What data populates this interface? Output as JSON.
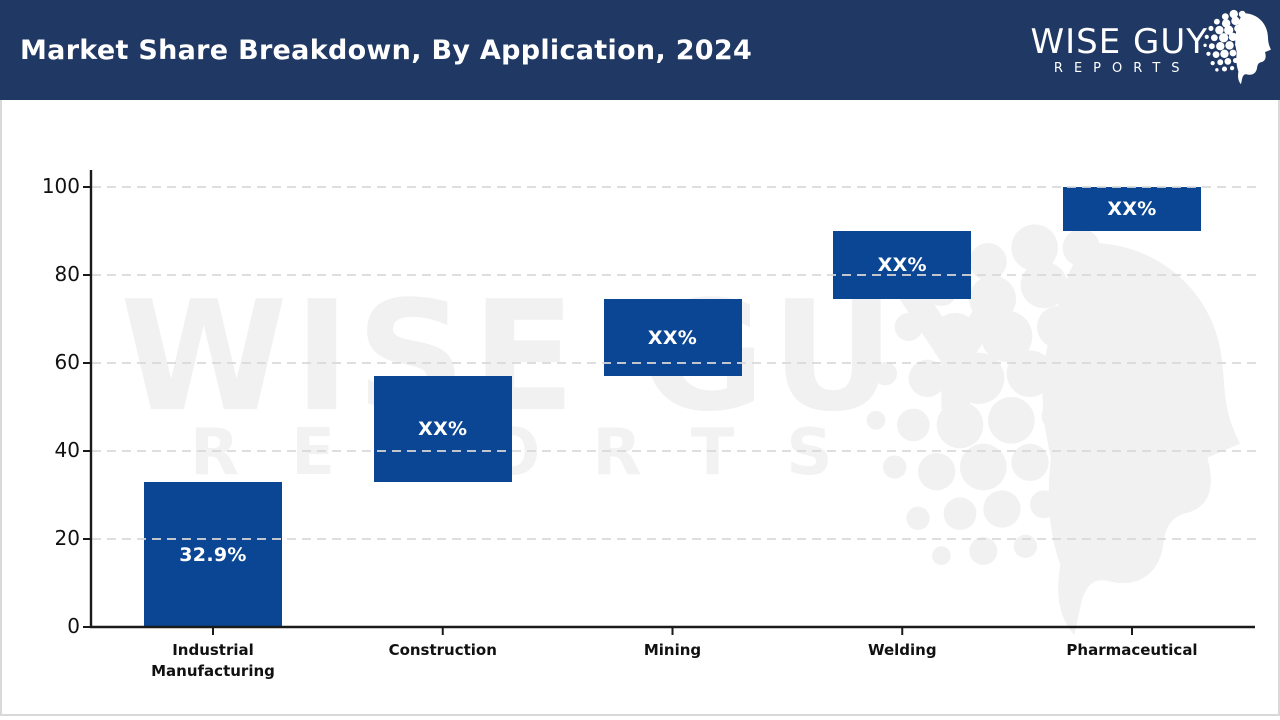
{
  "header": {
    "title": "Market Share Breakdown, By Application, 2024",
    "logo": {
      "wordmark": "WISE GUY",
      "subtext": "REPORTS"
    }
  },
  "watermark": {
    "wordmark": "WISE GUY",
    "subtext": "REPORTS"
  },
  "chart_data": {
    "type": "bar",
    "subtype": "waterfall",
    "title": "Market Share Breakdown, By Application, 2024",
    "xlabel": "",
    "ylabel": "",
    "categories": [
      "Industrial\nManufacturing",
      "Construction",
      "Mining",
      "Welding",
      "Pharmaceutical"
    ],
    "segments": [
      {
        "category": "Industrial Manufacturing",
        "start": 0,
        "end": 32.9,
        "value": 32.9,
        "label": "32.9%"
      },
      {
        "category": "Construction",
        "start": 32.9,
        "end": 57.0,
        "value": 24.1,
        "label": "XX%"
      },
      {
        "category": "Mining",
        "start": 57.0,
        "end": 74.5,
        "value": 17.5,
        "label": "XX%"
      },
      {
        "category": "Welding",
        "start": 74.5,
        "end": 90.0,
        "value": 15.5,
        "label": "XX%"
      },
      {
        "category": "Pharmaceutical",
        "start": 90.0,
        "end": 100.0,
        "value": 10.0,
        "label": "XX%"
      }
    ],
    "yticks": [
      0,
      20,
      40,
      60,
      80,
      100
    ],
    "ylim": [
      0,
      105
    ],
    "grid": {
      "horizontal": true,
      "style": "dashed"
    },
    "legend": "none",
    "colors": {
      "bar": "#0b4694",
      "bar_label": "#ffffff",
      "gridline": "#d9d9d9",
      "axis": "#1a1a1a",
      "header_bg": "#203864",
      "watermark": "#f1f1f1"
    }
  }
}
